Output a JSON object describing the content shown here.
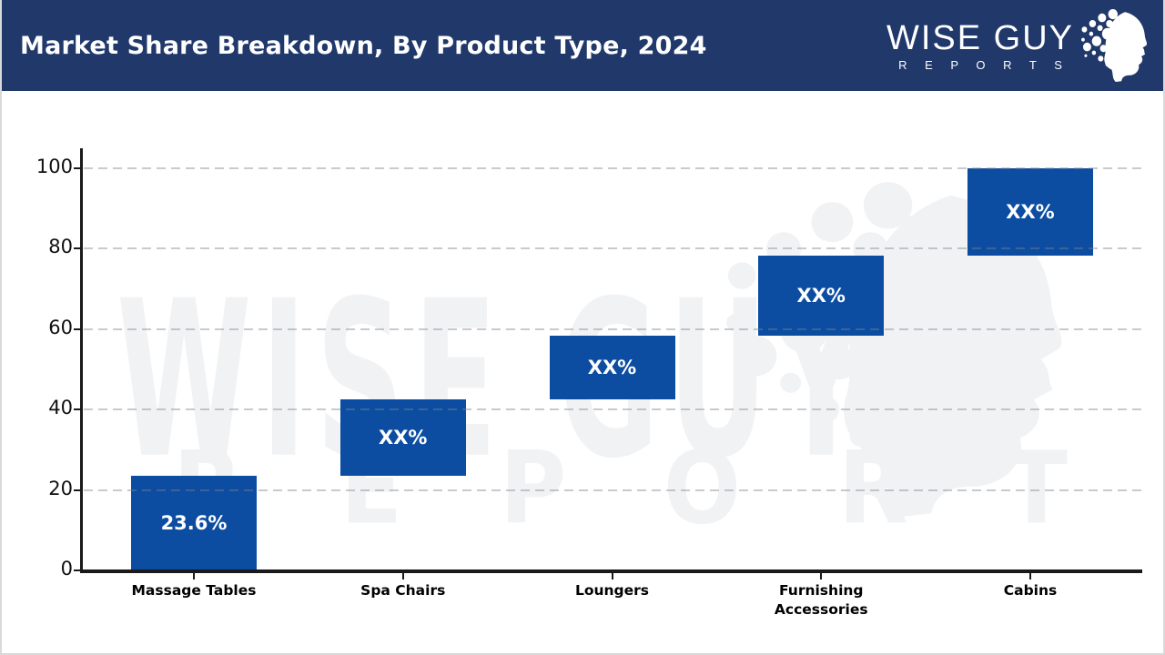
{
  "header": {
    "title": "Market Share Breakdown, By Product Type, 2024",
    "logo": {
      "line1": "WISE GUY",
      "line2": "R E P O R T S",
      "icon": "face-profile-dots-icon"
    }
  },
  "watermark": {
    "line1": "WISE GUY",
    "line2": "R E P O R T S",
    "icon": "face-profile-dots-icon"
  },
  "colors": {
    "header_bg": "#21386B",
    "bar_fill": "#0C4DA2",
    "bar_label_text": "#FFFFFF",
    "watermark": "#F1F2F4",
    "gridline": "#D9D9D9",
    "axis": "#1A1A1A",
    "page_border": "#D9D9D9"
  },
  "chart_data": {
    "type": "bar",
    "subtype": "waterfall",
    "title": "Market Share Breakdown, By Product Type, 2024",
    "categories": [
      "Massage Tables",
      "Spa Chairs",
      "Loungers",
      "Furnishing Accessories",
      "Cabins"
    ],
    "segments": [
      {
        "category": "Massage Tables",
        "start": 0,
        "end": 23.6,
        "label": "23.6%"
      },
      {
        "category": "Spa Chairs",
        "start": 23.6,
        "end": 42.5,
        "label": "XX%"
      },
      {
        "category": "Loungers",
        "start": 42.5,
        "end": 58.3,
        "label": "XX%"
      },
      {
        "category": "Furnishing Accessories",
        "start": 58.3,
        "end": 78.2,
        "label": "XX%"
      },
      {
        "category": "Cabins",
        "start": 78.2,
        "end": 100,
        "label": "XX%"
      }
    ],
    "yticks": [
      0,
      20,
      40,
      60,
      80,
      100
    ],
    "ylim": [
      0,
      100
    ],
    "xlabel": "",
    "ylabel": "",
    "grid": "horizontal-dashed",
    "legend": "none"
  }
}
